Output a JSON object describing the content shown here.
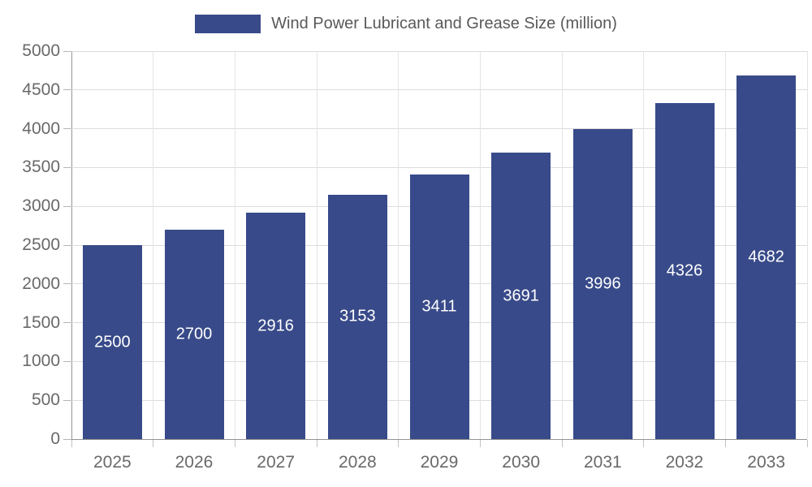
{
  "legend": {
    "label": "Wind Power Lubricant and Grease Size (million)"
  },
  "chart_data": {
    "type": "bar",
    "title": "Wind Power Lubricant and Grease Size (million)",
    "categories": [
      "2025",
      "2026",
      "2027",
      "2028",
      "2029",
      "2030",
      "2031",
      "2032",
      "2033"
    ],
    "values": [
      2500,
      2700,
      2916,
      3153,
      3411,
      3691,
      3996,
      4326,
      4682
    ],
    "xlabel": "",
    "ylabel": "",
    "ylim": [
      0,
      5000
    ],
    "ytick_step": 500,
    "grid": true,
    "legend_position": "top-center",
    "colors": {
      "bar_fill": "#384a89",
      "bar_value_text": "#ffffff",
      "axis_tick_text": "#696969",
      "legend_text": "#595959",
      "hgrid_line": "#dcdcdc",
      "vgrid_line": "#e4e4e4",
      "axis_line": "#949494"
    }
  }
}
